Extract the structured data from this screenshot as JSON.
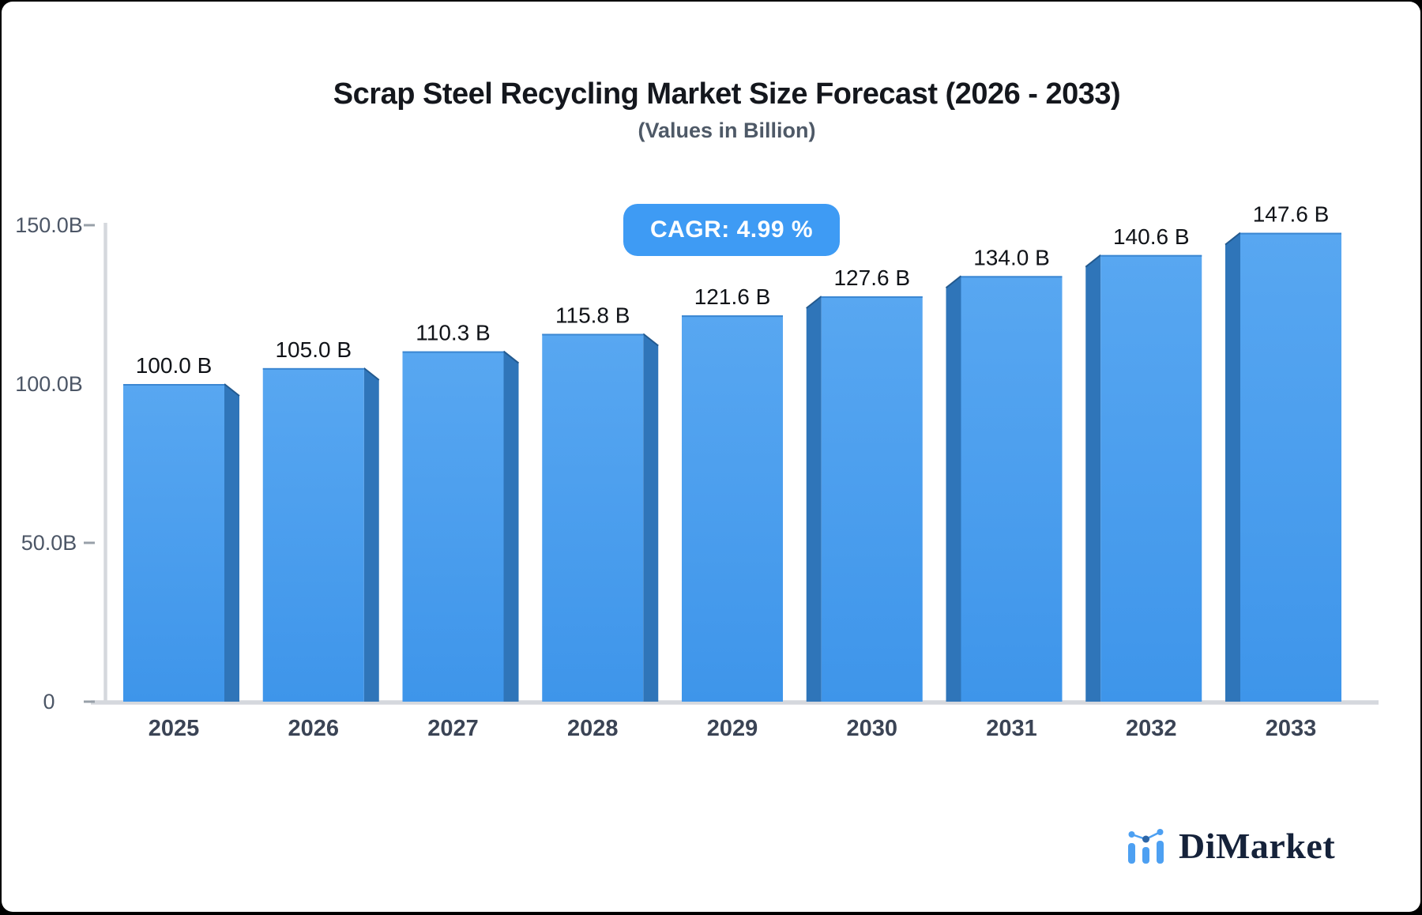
{
  "page": {
    "title": "Scrap Steel Recycling Market Size Forecast (2026 - 2033)",
    "subtitle": "(Values in Billion)",
    "badge_label": "CAGR: 4.99 %",
    "logo_text": "DiMarket"
  },
  "chart_data": {
    "type": "bar",
    "title": "Scrap Steel Recycling Market Size Forecast (2026 - 2033)",
    "subtitle": "(Values in Billion)",
    "badge": "CAGR: 4.99 %",
    "categories": [
      "2025",
      "2026",
      "2027",
      "2028",
      "2029",
      "2030",
      "2031",
      "2032",
      "2033"
    ],
    "values": [
      100.0,
      105.0,
      110.3,
      115.8,
      121.6,
      127.6,
      134.0,
      140.6,
      147.6
    ],
    "value_labels": [
      "100.0 B",
      "105.0 B",
      "110.3 B",
      "115.8 B",
      "121.6 B",
      "127.6 B",
      "134.0 B",
      "140.6 B",
      "147.6 B"
    ],
    "xlabel": "",
    "ylabel": "",
    "ylim": [
      0,
      150
    ],
    "yticks": [
      {
        "label": "150.0B",
        "value": 150,
        "dash": true
      },
      {
        "label": "100.0B",
        "value": 100,
        "dash": false
      },
      {
        "label": "50.0B",
        "value": 50,
        "dash": true
      },
      {
        "label": "0",
        "value": 0,
        "dash": true
      }
    ],
    "grid": "off",
    "legend": "none",
    "colors": {
      "bar_face_top": "#58A7F1",
      "bar_face_bottom": "#3E95EA",
      "bar_side": "#2F75B9",
      "bar_edge": "#3C87D2",
      "bar_bevel_edge": "#235A8F",
      "badge_bg": "#3E9BF4",
      "axis": "#D5D8DD",
      "tick": "#98A0A9",
      "value_label": "#101318",
      "year_label": "#3B4455",
      "ytick_text": "#4C5666",
      "logo_blue": "#4DA0F2",
      "logo_dark_dot": "#2C66A8",
      "logo_text_color": "#15223A"
    }
  }
}
